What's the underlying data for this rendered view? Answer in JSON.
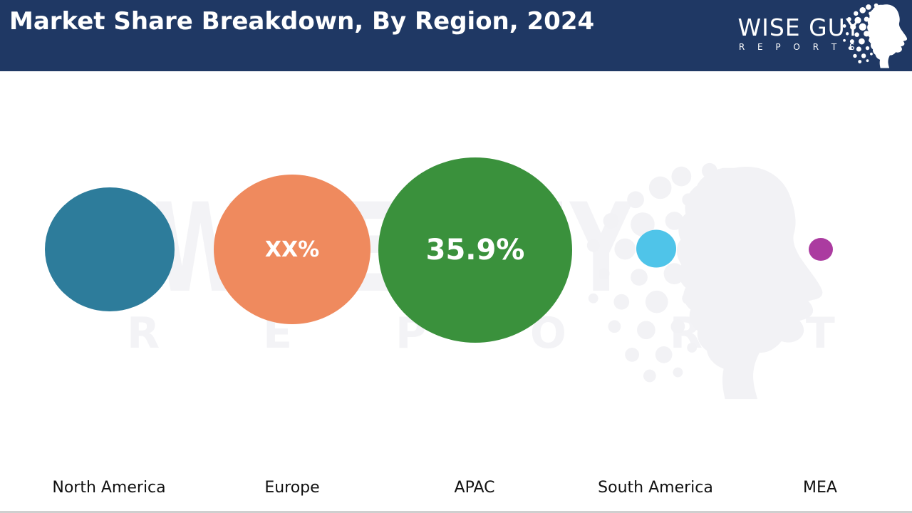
{
  "header": {
    "title": "Market Share Breakdown, By Region, 2024",
    "bg_color": "#1f3864",
    "logo": {
      "name": "WISE GUY",
      "tagline": "R E P O R T S"
    }
  },
  "watermark": {
    "text_primary": "WISE GUY",
    "text_secondary": "R E P O R T S"
  },
  "chart_data": {
    "type": "bubble",
    "title": "Market Share Breakdown, By Region, 2024",
    "categories": [
      "North America",
      "Europe",
      "APAC",
      "South America",
      "MEA"
    ],
    "series": [
      {
        "name": "North America",
        "value": null,
        "value_label": "",
        "color": "#2d7c9b",
        "radius_px": 91
      },
      {
        "name": "Europe",
        "value": null,
        "value_label": "XX%",
        "color": "#ef8a5e",
        "radius_px": 110
      },
      {
        "name": "APAC",
        "value": 35.9,
        "value_label": "35.9%",
        "color": "#3a913c",
        "radius_px": 136
      },
      {
        "name": "South America",
        "value": null,
        "value_label": "",
        "color": "#4fc4e9",
        "radius_px": 28
      },
      {
        "name": "MEA",
        "value": null,
        "value_label": "",
        "color": "#ab3ba0",
        "radius_px": 17
      }
    ],
    "value_label_color": "#ffffff",
    "category_label_color": "#111111",
    "legend_position": "bottom",
    "grid": false,
    "background": "#ffffff"
  }
}
